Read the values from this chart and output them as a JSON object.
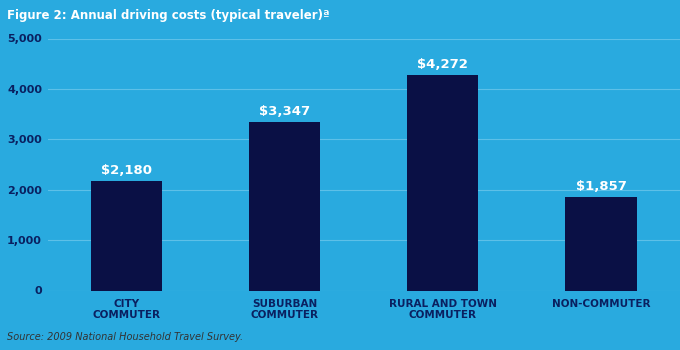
{
  "title": "Figure 2: Annual driving costs (typical traveler) æ",
  "title_display": "Figure 2: Annual driving costs (typical traveler)ª",
  "categories": [
    "CITY\nCOMMUTER",
    "SUBURBAN\nCOMMUTER",
    "RURAL AND TOWN\nCOMMUTER",
    "NON-COMMUTER"
  ],
  "values": [
    2180,
    3347,
    4272,
    1857
  ],
  "labels": [
    "$2,180",
    "$3,347",
    "$4,272",
    "$1,857"
  ],
  "bar_color": "#0a1045",
  "bg_color": "#29aadf",
  "title_bg_color": "#1a1a1a",
  "title_text_color": "#ffffff",
  "bar_label_color": "#ffffff",
  "axis_label_color": "#003366",
  "tick_label_color": "#1a3a6b",
  "grid_color": "#5dc0e8",
  "source_text": "Source: 2009 National Household Travel Survey.",
  "ylim": [
    0,
    5000
  ],
  "yticks": [
    0,
    1000,
    2000,
    3000,
    4000,
    5000
  ],
  "bar_width": 0.45,
  "figure_width": 6.8,
  "figure_height": 3.5,
  "dpi": 100
}
